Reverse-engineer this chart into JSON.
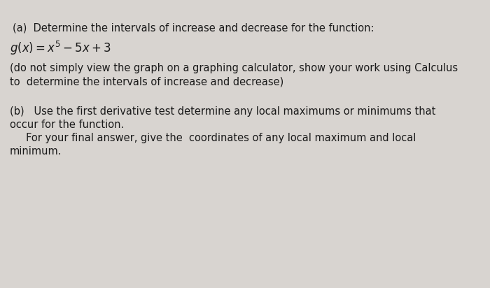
{
  "background_color": "#d8d4d0",
  "text_color": "#1a1a1a",
  "fig_width": 7.0,
  "fig_height": 4.12,
  "dpi": 100,
  "line_a1": "(a)  Determine the intervals of increase and decrease for the function:",
  "line_formula": "$g(x) = x^5 - 5x + 3$",
  "line_note1": "(do not simply view the graph on a graphing calculator, show your work using Calculus",
  "line_note2": "to  determine the intervals of increase and decrease)",
  "line_b1": "(b)   Use the first derivative test determine any local maximums or minimums that",
  "line_b2": "occur for the function.",
  "line_b3": "     For your final answer, give the  coordinates of any local maximum and local",
  "line_b4": "minimum.",
  "font_size": 10.5
}
